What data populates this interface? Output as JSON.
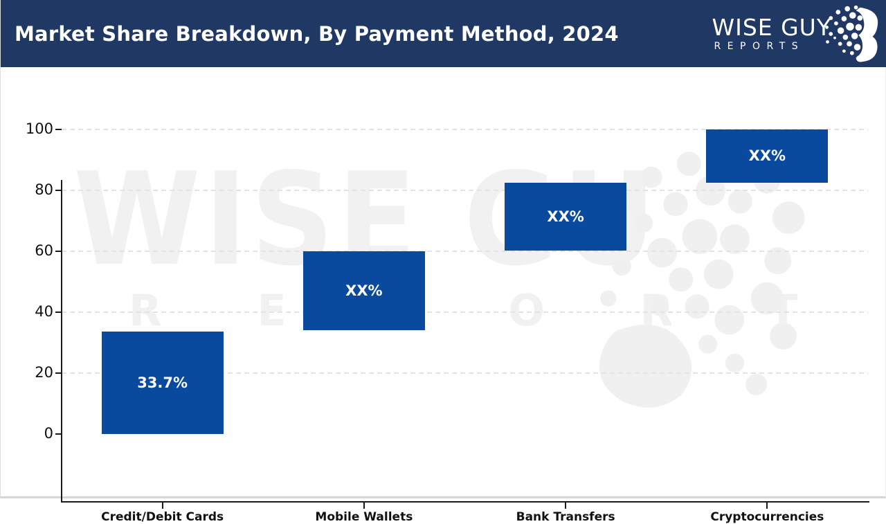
{
  "header": {
    "title": "Market Share Breakdown, By Payment Method, 2024",
    "logo": {
      "line1": "WISE GUY",
      "line2": "REPORTS"
    }
  },
  "watermark": {
    "line1": "WISE GU",
    "line2": "R E P O R T S"
  },
  "colors": {
    "header_bg": "#1f3864",
    "bar": "#0a4a9e",
    "gridline": "#e3e3e3",
    "axis": "#1a1a1a",
    "watermark": "#f1f1f1"
  },
  "chart_data": {
    "type": "bar",
    "subtype": "waterfall",
    "title": "Market Share Breakdown, By Payment Method, 2024",
    "categories": [
      "Credit/Debit Cards",
      "Mobile Wallets",
      "Bank Transfers",
      "Cryptocurrencies"
    ],
    "segments": [
      {
        "category": "Credit/Debit Cards",
        "start": 0,
        "end": 33.7,
        "value_label": "33.7%"
      },
      {
        "category": "Mobile Wallets",
        "start": 34.0,
        "end": 60.0,
        "value_label": "XX%"
      },
      {
        "category": "Bank Transfers",
        "start": 60.3,
        "end": 82.6,
        "value_label": "XX%"
      },
      {
        "category": "Cryptocurrencies",
        "start": 82.6,
        "end": 100.0,
        "value_label": "XX%"
      }
    ],
    "xlabel": "",
    "ylabel": "",
    "y_ticks": [
      0,
      20,
      40,
      60,
      80,
      100
    ],
    "ylim": [
      0,
      105
    ],
    "grid": "horizontal-dashed",
    "legend": "none",
    "bar_color": "#0a4a9e"
  }
}
